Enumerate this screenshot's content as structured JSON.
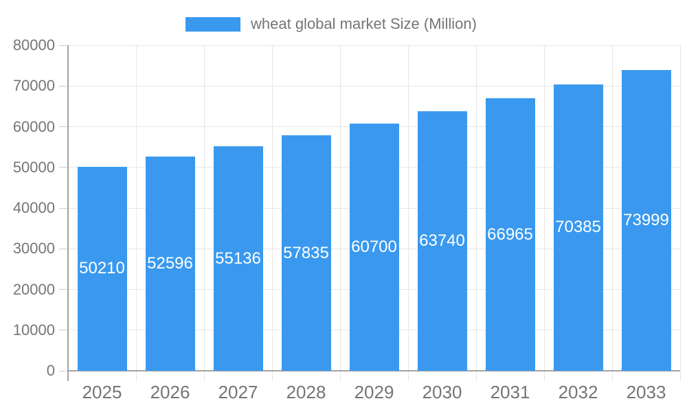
{
  "chart_data": {
    "type": "bar",
    "title": "wheat global market Size (Million)",
    "legend_position": "top",
    "categories": [
      "2025",
      "2026",
      "2027",
      "2028",
      "2029",
      "2030",
      "2031",
      "2032",
      "2033"
    ],
    "series": [
      {
        "name": "wheat global market Size (Million)",
        "values": [
          50210,
          52596,
          55136,
          57835,
          60700,
          63740,
          66965,
          70385,
          73999
        ]
      }
    ],
    "value_labels": [
      "50210",
      "52596",
      "55136",
      "57835",
      "60700",
      "63740",
      "66965",
      "70385",
      "73999"
    ],
    "xlabel": "",
    "ylabel": "",
    "ylim": [
      0,
      80000
    ],
    "ytick_interval": 10000,
    "ytick_labels": [
      "0",
      "10000",
      "20000",
      "30000",
      "40000",
      "50000",
      "60000",
      "70000",
      "80000"
    ],
    "grid": true,
    "gridlines": "horizontal-and-vertical"
  },
  "colors": {
    "bar": "#3A99EE",
    "value_label": "#FFFFFF",
    "axis_text": "#757575",
    "title_text": "#757575",
    "gridline": "#E6E6E6",
    "axis_line": "#A3A3A3",
    "tick": "#CCCCCC",
    "background": "#FFFFFF"
  }
}
